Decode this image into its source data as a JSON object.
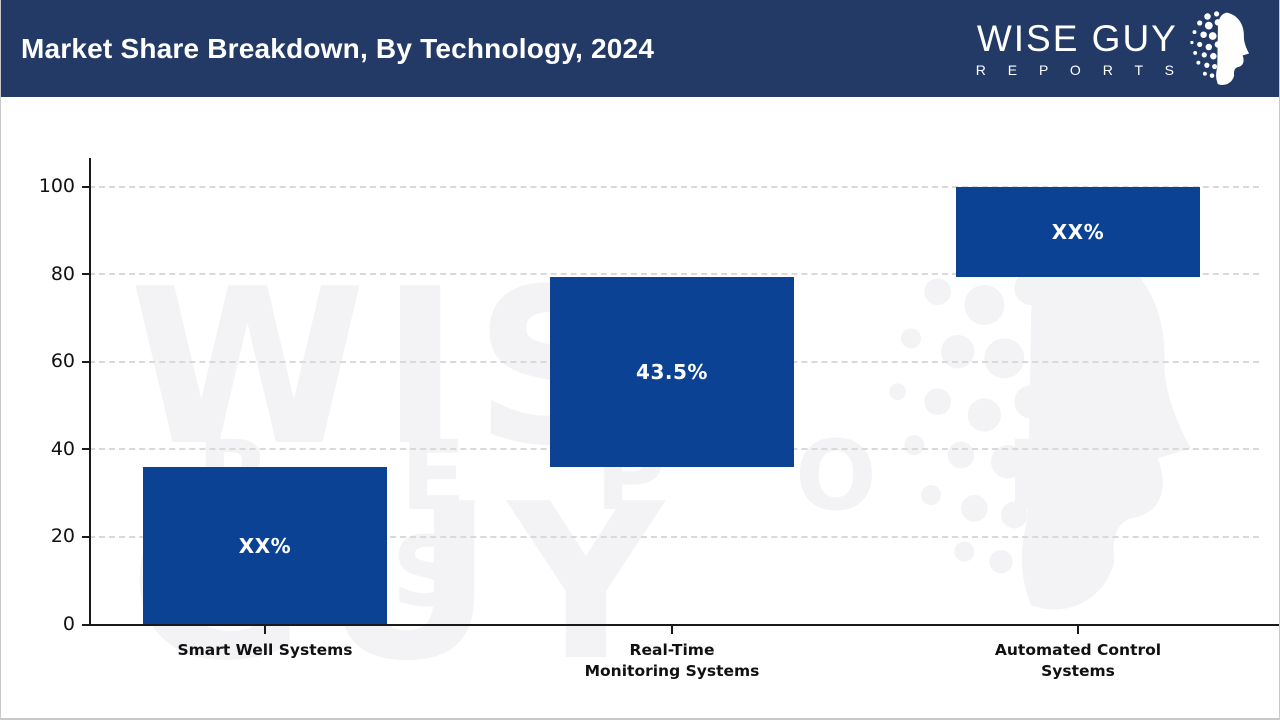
{
  "header": {
    "title": "Market Share Breakdown, By Technology, 2024",
    "logo": {
      "name": "WISE GUY",
      "subname": "R E P O R T S"
    }
  },
  "watermark": {
    "line1": "WISE GUY",
    "line2": "R E P O R T S"
  },
  "chart_data": {
    "type": "bar",
    "variant": "floating-segment stacked breakdown (waterfall-style)",
    "title": "Market Share Breakdown, By Technology, 2024",
    "categories": [
      "Smart Well Systems",
      "Real-Time\nMonitoring Systems",
      "Automated Control\nSystems"
    ],
    "segments": [
      {
        "category": "Smart Well Systems",
        "start": 0,
        "end": 36,
        "value_label": "XX%"
      },
      {
        "category": "Real-Time Monitoring Systems",
        "start": 36,
        "end": 79.5,
        "value": 43.5,
        "value_label": "43.5%"
      },
      {
        "category": "Automated Control Systems",
        "start": 79.5,
        "end": 100,
        "value_label": "XX%"
      }
    ],
    "yticks": [
      "0",
      "20",
      "40",
      "60",
      "80",
      "100"
    ],
    "ytick_values": [
      0,
      20,
      40,
      60,
      80,
      100
    ],
    "ylim": [
      0,
      105
    ],
    "xlabel": "",
    "ylabel": "",
    "grid": "horizontal dashed",
    "legend": "none",
    "bar_color": "#0B4294"
  },
  "colors": {
    "header_bg": "#233A66",
    "bar": "#0B4294",
    "grid": "#D9D9D9",
    "axis": "#1A1A1A",
    "watermark": "#F3F3F5",
    "border": "#C9C9C9",
    "title_text": "#FFFFFF"
  }
}
